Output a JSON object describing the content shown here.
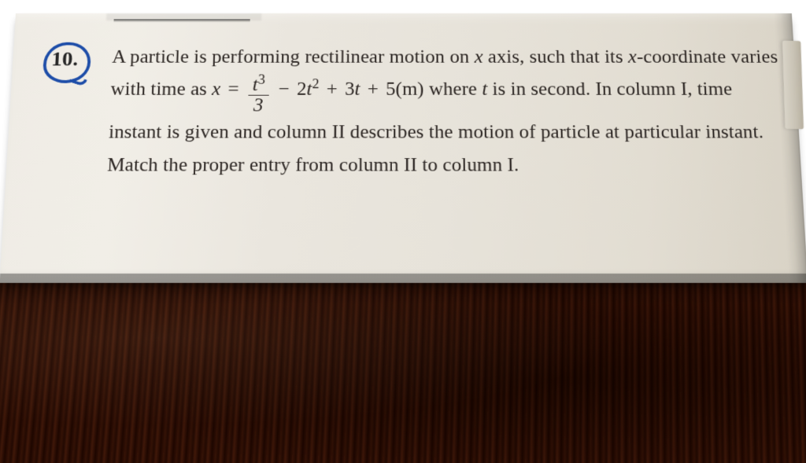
{
  "question": {
    "number": "10.",
    "circle_color": "#1d4da8",
    "text_before_formula": "A particle is performing rectilinear motion on",
    "axis_inline": "x axis",
    "text_after_axis": ", such that its",
    "coord_phrase": "x-coordinate",
    "text_mid": "varies with time as",
    "formula": {
      "lhs_var": "x",
      "eq": "=",
      "frac_num_var": "t",
      "frac_num_exp": "3",
      "frac_den": "3",
      "minus1": "−",
      "a_coeff": "2",
      "a_var": "t",
      "a_exp": "2",
      "plus1": "+",
      "b_coeff": "3",
      "b_var": "t",
      "plus2": "+",
      "c": "5",
      "unit_open": "(",
      "unit": "m",
      "unit_close": ")"
    },
    "text_where": "where",
    "time_var": "t",
    "text_after_formula": "is in second. In column I, time instant is given and column II describes the motion of particle at particular instant. Match the proper entry from column II to column I."
  },
  "style": {
    "text_color": "#2c2623",
    "paper_bg_start": "#efece5",
    "paper_bg_end": "#d8d2c5",
    "desk_dark": "#120602",
    "font_size_pt": 19,
    "line_height": 1.73
  }
}
